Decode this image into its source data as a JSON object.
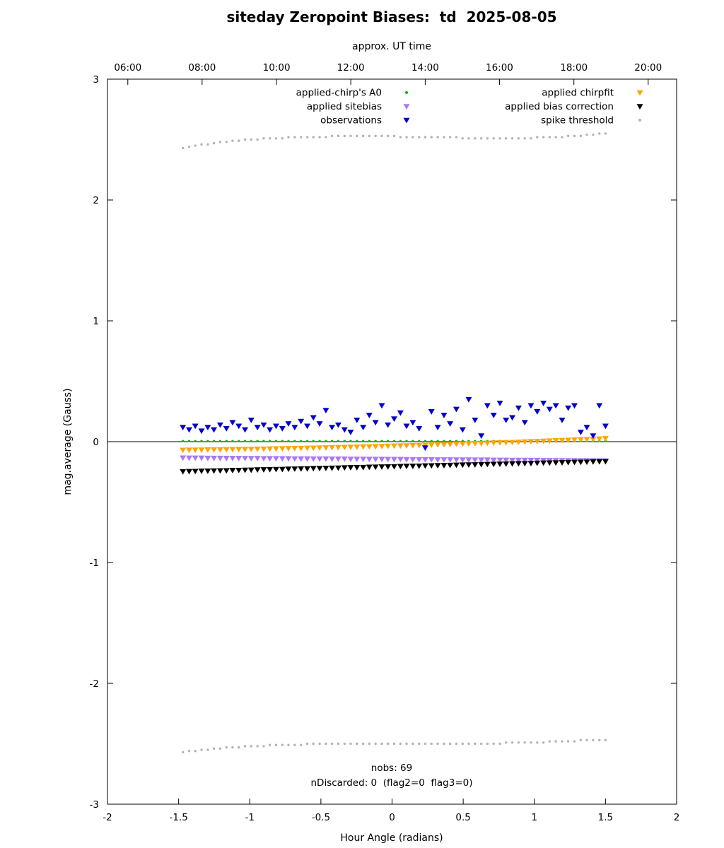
{
  "title": "siteday Zeropoint Biases:  td  2025-08-05",
  "axes": {
    "top_label": "approx. UT time",
    "bottom_label": "Hour Angle (radians)",
    "left_label": "mag.average (Gauss)",
    "x_ticks": [
      -2,
      -1.5,
      -1,
      -0.5,
      0,
      0.5,
      1,
      1.5,
      2
    ],
    "x_tick_labels": [
      "-2",
      "-1.5",
      "-1",
      "-0.5",
      "0",
      "0.5",
      "1",
      "1.5",
      "2"
    ],
    "y_ticks": [
      -3,
      -2,
      -1,
      0,
      1,
      2,
      3
    ],
    "y_tick_labels": [
      "-3",
      "-2",
      "-1",
      "0",
      "1",
      "2",
      "3"
    ],
    "ut_ticks": [
      {
        "label": "06:00",
        "ha": -1.857
      },
      {
        "label": "08:00",
        "ha": -1.335
      },
      {
        "label": "10:00",
        "ha": -0.812
      },
      {
        "label": "12:00",
        "ha": -0.29
      },
      {
        "label": "14:00",
        "ha": 0.233
      },
      {
        "label": "16:00",
        "ha": 0.755
      },
      {
        "label": "18:00",
        "ha": 1.278
      },
      {
        "label": "20:00",
        "ha": 1.8
      }
    ]
  },
  "legend": {
    "columns": [
      [
        {
          "label": "applied-chirp's A0",
          "marker": "dot",
          "color": "#00bb00"
        },
        {
          "label": "applied sitebias",
          "marker": "triangle-down",
          "color": "#ab77f2"
        },
        {
          "label": "observations",
          "marker": "triangle-down",
          "color": "#0000cc"
        }
      ],
      [
        {
          "label": "applied chirpfit",
          "marker": "triangle-down",
          "color": "#ffa500"
        },
        {
          "label": "applied bias correction",
          "marker": "triangle-down",
          "color": "#000000"
        },
        {
          "label": "spike threshold",
          "marker": "dot",
          "color": "#b3b3b3"
        }
      ]
    ]
  },
  "annotations": {
    "nobs": "nobs: 69",
    "ndiscarded": "nDiscarded: 0  (flag2=0  flag3=0)"
  },
  "chart_data": {
    "type": "scatter",
    "title": "siteday Zeropoint Biases:  td  2025-08-05",
    "xlabel": "Hour Angle (radians)",
    "x2label": "approx. UT time",
    "ylabel": "mag.average (Gauss)",
    "xlim": [
      -2,
      2
    ],
    "ylim": [
      -3,
      3
    ],
    "grid": false,
    "legend_position": "top-inside-two-columns",
    "x": [
      -1.47,
      -1.426,
      -1.383,
      -1.339,
      -1.295,
      -1.252,
      -1.208,
      -1.164,
      -1.121,
      -1.077,
      -1.033,
      -0.99,
      -0.946,
      -0.902,
      -0.859,
      -0.815,
      -0.771,
      -0.728,
      -0.684,
      -0.64,
      -0.596,
      -0.553,
      -0.509,
      -0.465,
      -0.422,
      -0.378,
      -0.334,
      -0.291,
      -0.247,
      -0.203,
      -0.16,
      -0.116,
      -0.072,
      -0.029,
      0.015,
      0.059,
      0.102,
      0.146,
      0.19,
      0.233,
      0.277,
      0.321,
      0.365,
      0.408,
      0.452,
      0.496,
      0.539,
      0.583,
      0.627,
      0.67,
      0.714,
      0.758,
      0.801,
      0.845,
      0.889,
      0.933,
      0.976,
      1.02,
      1.064,
      1.107,
      1.151,
      1.195,
      1.238,
      1.282,
      1.326,
      1.369,
      1.413,
      1.457,
      1.5
    ],
    "series": [
      {
        "name": "spike threshold upper",
        "marker": "dot",
        "color": "#b3b3b3",
        "y": [
          2.43,
          2.44,
          2.45,
          2.46,
          2.46,
          2.47,
          2.48,
          2.48,
          2.49,
          2.49,
          2.5,
          2.5,
          2.5,
          2.51,
          2.51,
          2.51,
          2.51,
          2.52,
          2.52,
          2.52,
          2.52,
          2.52,
          2.52,
          2.52,
          2.53,
          2.53,
          2.53,
          2.53,
          2.53,
          2.53,
          2.53,
          2.53,
          2.53,
          2.53,
          2.53,
          2.52,
          2.52,
          2.52,
          2.52,
          2.52,
          2.52,
          2.52,
          2.52,
          2.52,
          2.52,
          2.51,
          2.51,
          2.51,
          2.51,
          2.51,
          2.51,
          2.51,
          2.51,
          2.51,
          2.51,
          2.51,
          2.51,
          2.52,
          2.52,
          2.52,
          2.52,
          2.52,
          2.53,
          2.53,
          2.53,
          2.54,
          2.54,
          2.55,
          2.55
        ]
      },
      {
        "name": "spike threshold lower",
        "marker": "dot",
        "color": "#b3b3b3",
        "y": [
          -2.57,
          -2.56,
          -2.56,
          -2.55,
          -2.55,
          -2.54,
          -2.54,
          -2.53,
          -2.53,
          -2.53,
          -2.52,
          -2.52,
          -2.52,
          -2.52,
          -2.51,
          -2.51,
          -2.51,
          -2.51,
          -2.51,
          -2.51,
          -2.5,
          -2.5,
          -2.5,
          -2.5,
          -2.5,
          -2.5,
          -2.5,
          -2.5,
          -2.5,
          -2.5,
          -2.5,
          -2.5,
          -2.5,
          -2.5,
          -2.5,
          -2.5,
          -2.5,
          -2.5,
          -2.5,
          -2.5,
          -2.5,
          -2.5,
          -2.5,
          -2.5,
          -2.5,
          -2.5,
          -2.5,
          -2.5,
          -2.5,
          -2.5,
          -2.5,
          -2.5,
          -2.49,
          -2.49,
          -2.49,
          -2.49,
          -2.49,
          -2.49,
          -2.49,
          -2.48,
          -2.48,
          -2.48,
          -2.48,
          -2.48,
          -2.47,
          -2.47,
          -2.47,
          -2.47,
          -2.47
        ]
      },
      {
        "name": "applied-chirp's A0",
        "marker": "dot",
        "color": "#00bb00",
        "y_const": 0.005
      },
      {
        "name": "applied chirpfit",
        "marker": "triangle-down",
        "color": "#ffa500",
        "y": [
          -0.069,
          -0.068,
          -0.068,
          -0.067,
          -0.066,
          -0.066,
          -0.065,
          -0.064,
          -0.063,
          -0.063,
          -0.062,
          -0.061,
          -0.06,
          -0.059,
          -0.058,
          -0.057,
          -0.056,
          -0.055,
          -0.054,
          -0.053,
          -0.052,
          -0.051,
          -0.05,
          -0.049,
          -0.047,
          -0.046,
          -0.045,
          -0.044,
          -0.043,
          -0.041,
          -0.04,
          -0.039,
          -0.037,
          -0.036,
          -0.034,
          -0.033,
          -0.032,
          -0.03,
          -0.029,
          -0.027,
          -0.026,
          -0.024,
          -0.023,
          -0.021,
          -0.019,
          -0.018,
          -0.016,
          -0.014,
          -0.013,
          -0.011,
          -0.009,
          -0.007,
          -0.006,
          -0.004,
          -0.002,
          0.0,
          0.002,
          0.004,
          0.006,
          0.008,
          0.01,
          0.012,
          0.014,
          0.016,
          0.018,
          0.02,
          0.022,
          0.024,
          0.027
        ]
      },
      {
        "name": "applied sitebias",
        "marker": "triangle-down",
        "color": "#ab77f2",
        "y": [
          -0.133,
          -0.134,
          -0.134,
          -0.134,
          -0.135,
          -0.135,
          -0.135,
          -0.136,
          -0.136,
          -0.136,
          -0.137,
          -0.137,
          -0.137,
          -0.138,
          -0.138,
          -0.138,
          -0.139,
          -0.139,
          -0.14,
          -0.14,
          -0.14,
          -0.141,
          -0.141,
          -0.141,
          -0.142,
          -0.142,
          -0.142,
          -0.143,
          -0.143,
          -0.143,
          -0.144,
          -0.144,
          -0.144,
          -0.145,
          -0.145,
          -0.145,
          -0.146,
          -0.146,
          -0.147,
          -0.147,
          -0.147,
          -0.148,
          -0.148,
          -0.148,
          -0.149,
          -0.149,
          -0.149,
          -0.15,
          -0.15,
          -0.15,
          -0.151,
          -0.151,
          -0.151,
          -0.152,
          -0.152,
          -0.152,
          -0.153,
          -0.153,
          -0.154,
          -0.154,
          -0.154,
          -0.155,
          -0.155,
          -0.155,
          -0.156,
          -0.156,
          -0.156,
          -0.157,
          -0.157
        ]
      },
      {
        "name": "applied bias correction",
        "marker": "triangle-down",
        "color": "#000000",
        "y": [
          -0.246,
          -0.245,
          -0.244,
          -0.242,
          -0.241,
          -0.24,
          -0.239,
          -0.238,
          -0.236,
          -0.235,
          -0.234,
          -0.233,
          -0.231,
          -0.23,
          -0.229,
          -0.228,
          -0.227,
          -0.225,
          -0.224,
          -0.223,
          -0.222,
          -0.22,
          -0.219,
          -0.218,
          -0.217,
          -0.216,
          -0.214,
          -0.213,
          -0.212,
          -0.211,
          -0.209,
          -0.208,
          -0.207,
          -0.206,
          -0.205,
          -0.203,
          -0.202,
          -0.201,
          -0.2,
          -0.198,
          -0.197,
          -0.196,
          -0.195,
          -0.194,
          -0.192,
          -0.191,
          -0.19,
          -0.189,
          -0.187,
          -0.186,
          -0.185,
          -0.184,
          -0.183,
          -0.181,
          -0.18,
          -0.179,
          -0.178,
          -0.176,
          -0.175,
          -0.174,
          -0.173,
          -0.172,
          -0.17,
          -0.169,
          -0.168,
          -0.167,
          -0.165,
          -0.164,
          -0.163
        ]
      },
      {
        "name": "observations",
        "marker": "triangle-down",
        "color": "#0000cc",
        "y": [
          0.12,
          0.1,
          0.13,
          0.09,
          0.12,
          0.1,
          0.14,
          0.11,
          0.16,
          0.13,
          0.1,
          0.18,
          0.12,
          0.14,
          0.1,
          0.13,
          0.11,
          0.15,
          0.12,
          0.17,
          0.13,
          0.2,
          0.15,
          0.26,
          0.12,
          0.14,
          0.1,
          0.08,
          0.18,
          0.12,
          0.22,
          0.16,
          0.3,
          0.14,
          0.19,
          0.24,
          0.13,
          0.16,
          0.11,
          -0.05,
          0.25,
          0.12,
          0.22,
          0.15,
          0.27,
          0.1,
          0.35,
          0.18,
          0.05,
          0.3,
          0.22,
          0.32,
          0.18,
          0.2,
          0.28,
          0.16,
          0.3,
          0.25,
          0.32,
          0.27,
          0.3,
          0.18,
          0.28,
          0.3,
          0.08,
          0.12,
          0.05,
          0.3,
          0.13
        ]
      }
    ]
  }
}
